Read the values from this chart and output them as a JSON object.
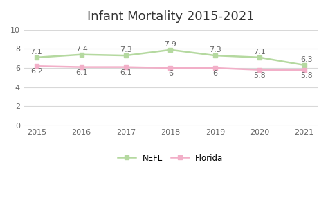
{
  "title": "Infant Mortality 2015-2021",
  "years": [
    2015,
    2016,
    2017,
    2018,
    2019,
    2020,
    2021
  ],
  "nefl_values": [
    7.1,
    7.4,
    7.3,
    7.9,
    7.3,
    7.1,
    6.3
  ],
  "florida_values": [
    6.2,
    6.1,
    6.1,
    6.0,
    6.0,
    5.8,
    5.8
  ],
  "nefl_labels": [
    "7.1",
    "7.4",
    "7.3",
    "7.9",
    "7.3",
    "7.1",
    "6.3"
  ],
  "florida_labels": [
    "6.2",
    "6.1",
    "6.1",
    "6",
    "6",
    "5.8",
    "5.8"
  ],
  "nefl_color": "#b5d9a0",
  "florida_color": "#f2afc8",
  "nefl_label": "NEFL",
  "florida_label": "Florida",
  "ylim": [
    0,
    10
  ],
  "yticks": [
    0,
    2,
    4,
    6,
    8,
    10
  ],
  "background_color": "#ffffff",
  "title_fontsize": 13,
  "tick_fontsize": 8,
  "label_fontsize": 8,
  "marker": "s",
  "marker_size": 4,
  "linewidth": 1.8,
  "grid_color": "#d8d8d8",
  "text_color": "#666666"
}
